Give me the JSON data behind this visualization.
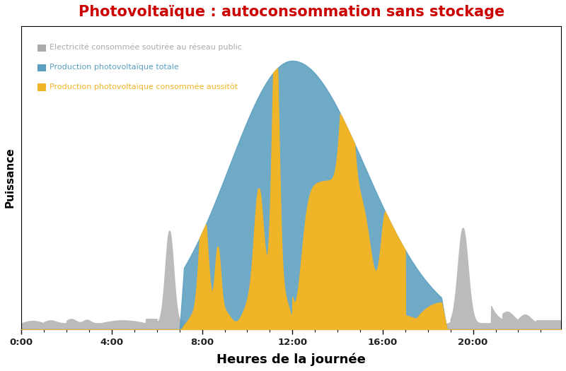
{
  "title": "Photovoltaïque : autoconsommation sans stockage",
  "title_color": "#cc0000",
  "xlabel": "Heures de la journée",
  "ylabel": "Puissance",
  "legend": [
    {
      "label": "Electricité consommée soutirée au réseau public",
      "color": "#aaaaaa"
    },
    {
      "label": "Production photovoltaïque totale",
      "color": "#5b9fc0"
    },
    {
      "label": "Production photovoltaïque consommée aussitôt",
      "color": "#f0b429"
    }
  ],
  "xtick_labels": [
    "0:00",
    "4:00",
    "8:00",
    "12:00",
    "16:00",
    "20:00"
  ],
  "xtick_positions": [
    0,
    4,
    8,
    12,
    16,
    20
  ],
  "xlim": [
    0,
    23.9
  ],
  "ylim": [
    0,
    1.05
  ],
  "background_color": "#ffffff",
  "grid_color": "#cccccc",
  "gray_color": "#bbbbbb",
  "blue_color": "#5b9fc0",
  "yellow_color": "#f0b429"
}
